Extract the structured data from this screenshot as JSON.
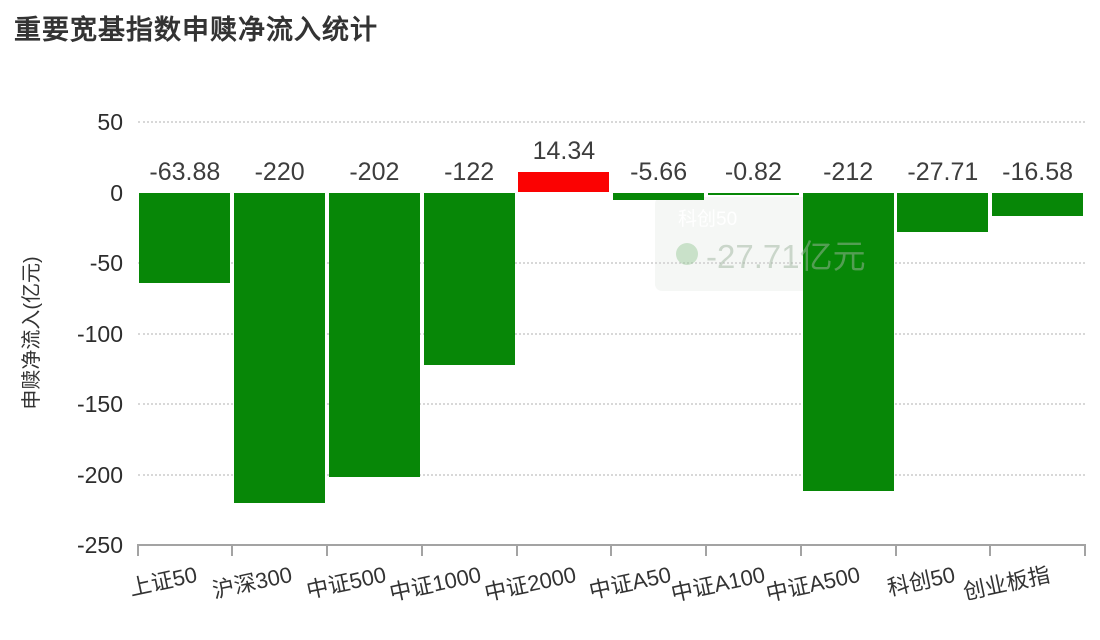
{
  "page": {
    "title": "重要宽基指数申赎净流入统计"
  },
  "chart_data": {
    "type": "bar",
    "title": "重要宽基指数申赎净流入统计",
    "ylabel": "申赎净流入(亿元)",
    "xlabel": "",
    "categories": [
      "上证50",
      "沪深300",
      "中证500",
      "中证1000",
      "中证2000",
      "中证A50",
      "中证A100",
      "中证A500",
      "科创50",
      "创业板指"
    ],
    "values": [
      -63.88,
      -220,
      -202,
      -122,
      14.34,
      -5.66,
      -0.82,
      -212,
      -27.71,
      -16.58
    ],
    "value_labels": [
      "-63.88",
      "-220",
      "-202",
      "-122",
      "14.34",
      "-5.66",
      "-0.82",
      "-212",
      "-27.71",
      "-16.58"
    ],
    "yticks": [
      50,
      0,
      -50,
      -100,
      -150,
      -200,
      -250
    ],
    "ylim": [
      -250,
      50
    ],
    "grid": "horizontal-dotted",
    "legend": "none",
    "colors": {
      "negative_bar": "#078707",
      "positive_bar": "#fb0202",
      "axis_line": "#a3a3a3",
      "grid_line": "#d8d8d8",
      "text": "#333333"
    }
  },
  "tooltip": {
    "series_name": "科创50",
    "value_text": "-27.71亿元",
    "marker": "series-color-dot"
  }
}
